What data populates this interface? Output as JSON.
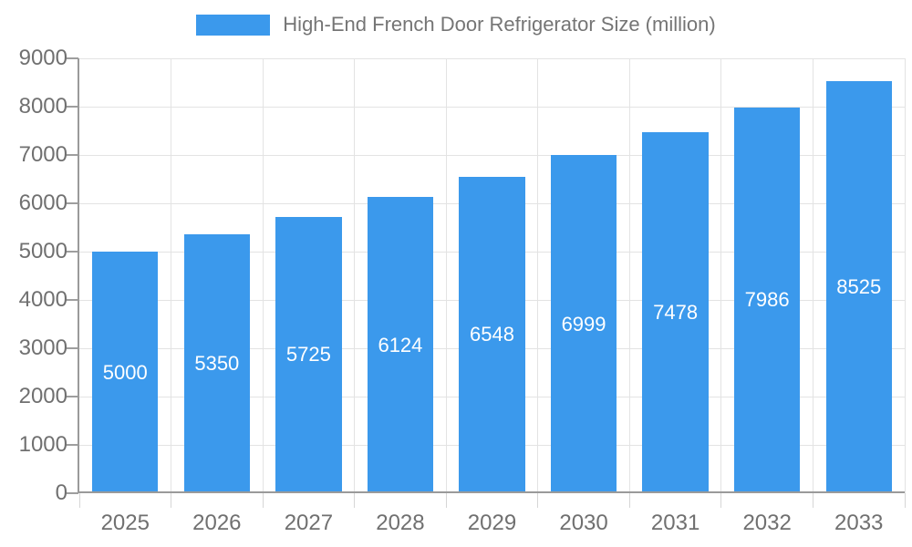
{
  "chart_data": {
    "type": "bar",
    "title": "High-End French Door Refrigerator Size (million)",
    "legend_position": "top-center",
    "categories": [
      "2025",
      "2026",
      "2027",
      "2028",
      "2029",
      "2030",
      "2031",
      "2032",
      "2033"
    ],
    "values": [
      5000,
      5350,
      5725,
      6124,
      6548,
      6999,
      7478,
      7986,
      8525
    ],
    "bar_labels": [
      "5000",
      "5350",
      "5725",
      "6124",
      "6548",
      "6999",
      "7478",
      "7986",
      "8525"
    ],
    "xlabel": "",
    "ylabel": "",
    "ylim": [
      0,
      9000
    ],
    "y_ticks": [
      0,
      1000,
      2000,
      3000,
      4000,
      5000,
      6000,
      7000,
      8000,
      9000
    ],
    "grid": true,
    "colors": {
      "bar": "#3b99ec",
      "grid_line": "#e3e3e3",
      "axis_line": "#9a9a9a",
      "tick_label": "#707070",
      "bar_label": "#ffffff",
      "legend_text": "#757575"
    }
  }
}
